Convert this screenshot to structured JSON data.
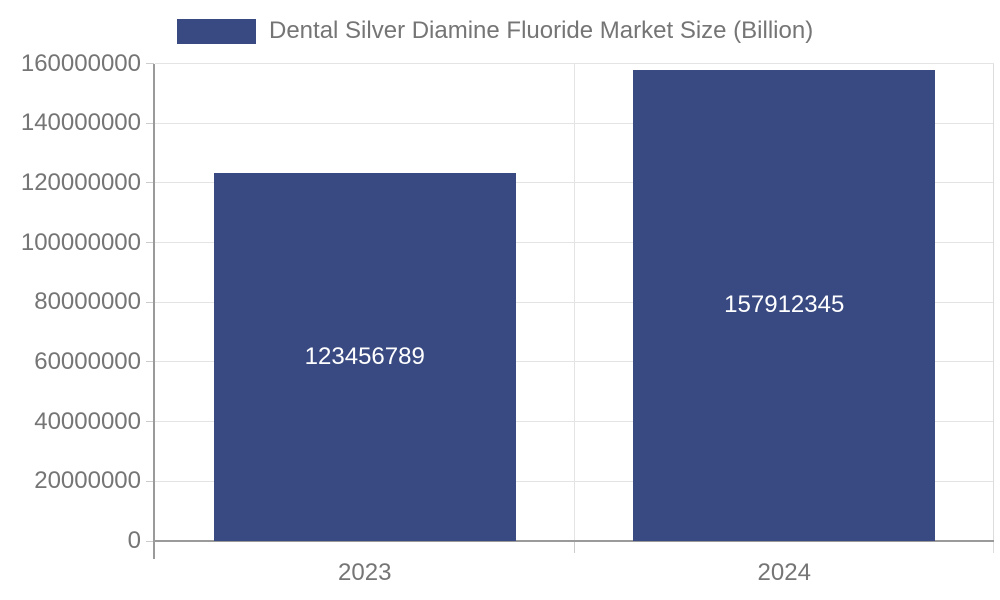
{
  "chart_data": {
    "type": "bar",
    "title": "Dental Silver Diamine Fluoride Market Size (Billion)",
    "categories": [
      "2023",
      "2024"
    ],
    "series": [
      {
        "name": "Dental Silver Diamine Fluoride Market Size (Billion)",
        "values": [
          123456789,
          157912345
        ]
      }
    ],
    "data_labels": [
      "123456789",
      "157912345"
    ],
    "xlabel": "",
    "ylabel": "",
    "ylim": [
      0,
      160000000
    ],
    "yticks": [
      0,
      20000000,
      40000000,
      60000000,
      80000000,
      100000000,
      120000000,
      140000000,
      160000000
    ],
    "ytick_labels": [
      "0",
      "20000000",
      "40000000",
      "60000000",
      "80000000",
      "100000000",
      "120000000",
      "140000000",
      "160000000"
    ],
    "grid": true,
    "legend_position": "top-left",
    "value_label_position": "inside-center"
  },
  "colors": {
    "bar": "#394A82",
    "grid": "#E4E4E4",
    "axis": "#9A9A9A",
    "tick": "#CCCCCC",
    "panel_border": "#DDDDDD",
    "label_text": "#757575",
    "value_text": "#FFFFFF",
    "background": "#FFFFFF"
  }
}
